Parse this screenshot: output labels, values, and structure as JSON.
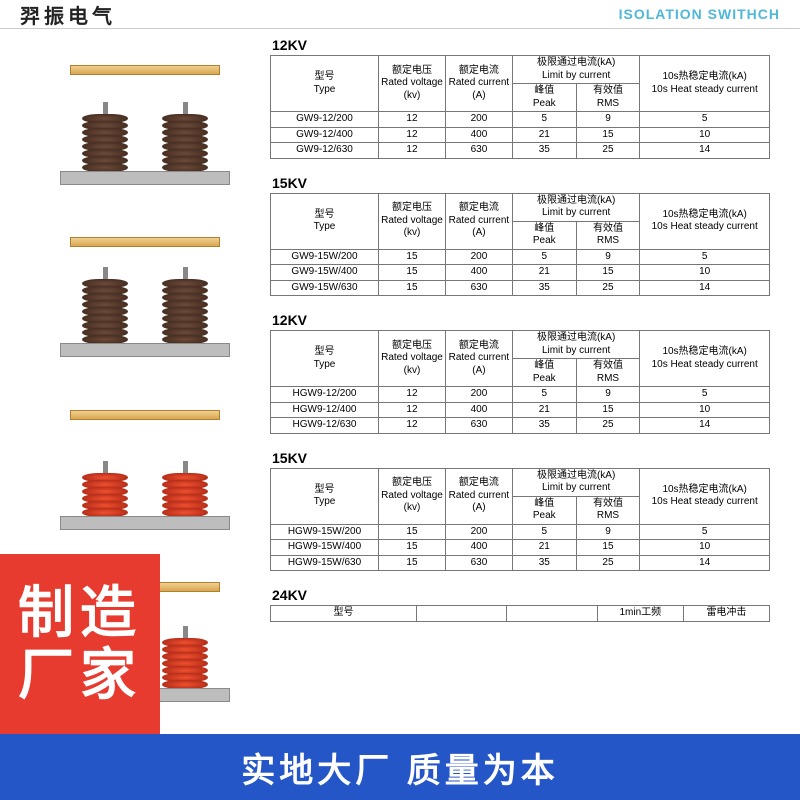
{
  "header": {
    "left_text": "羿振电气",
    "right_text": "ISOLATION SWITHCH"
  },
  "products": [
    {
      "color": "brown",
      "discs": 8
    },
    {
      "color": "brown",
      "discs": 9
    },
    {
      "color": "red",
      "discs": 6
    },
    {
      "color": "red",
      "discs": 7
    }
  ],
  "header_labels": {
    "type_cn": "型号",
    "type_en": "Type",
    "voltage_cn": "额定电压",
    "voltage_en": "Rated voltage",
    "voltage_unit": "(kv)",
    "current_cn": "额定电流",
    "current_en": "Rated current",
    "current_unit": "(A)",
    "limit_cn": "极限通过电流(kA)",
    "limit_en": "Limit by current",
    "peak_cn": "峰值",
    "peak_en": "Peak",
    "rms_cn": "有效值",
    "rms_en": "RMS",
    "heat_cn": "10s热稳定电流(kA)",
    "heat_en": "10s Heat steady current"
  },
  "sections": [
    {
      "title": "12KV",
      "rows": [
        {
          "type": "GW9-12/200",
          "kv": "12",
          "a": "200",
          "peak": "5",
          "rms": "9",
          "heat": "5"
        },
        {
          "type": "GW9-12/400",
          "kv": "12",
          "a": "400",
          "peak": "21",
          "rms": "15",
          "heat": "10"
        },
        {
          "type": "GW9-12/630",
          "kv": "12",
          "a": "630",
          "peak": "35",
          "rms": "25",
          "heat": "14"
        }
      ]
    },
    {
      "title": "15KV",
      "rows": [
        {
          "type": "GW9-15W/200",
          "kv": "15",
          "a": "200",
          "peak": "5",
          "rms": "9",
          "heat": "5"
        },
        {
          "type": "GW9-15W/400",
          "kv": "15",
          "a": "400",
          "peak": "21",
          "rms": "15",
          "heat": "10"
        },
        {
          "type": "GW9-15W/630",
          "kv": "15",
          "a": "630",
          "peak": "35",
          "rms": "25",
          "heat": "14"
        }
      ]
    },
    {
      "title": "12KV",
      "rows": [
        {
          "type": "HGW9-12/200",
          "kv": "12",
          "a": "200",
          "peak": "5",
          "rms": "9",
          "heat": "5"
        },
        {
          "type": "HGW9-12/400",
          "kv": "12",
          "a": "400",
          "peak": "21",
          "rms": "15",
          "heat": "10"
        },
        {
          "type": "HGW9-12/630",
          "kv": "12",
          "a": "630",
          "peak": "35",
          "rms": "25",
          "heat": "14"
        }
      ]
    },
    {
      "title": "15KV",
      "rows": [
        {
          "type": "HGW9-15W/200",
          "kv": "15",
          "a": "200",
          "peak": "5",
          "rms": "9",
          "heat": "5"
        },
        {
          "type": "HGW9-15W/400",
          "kv": "15",
          "a": "400",
          "peak": "21",
          "rms": "15",
          "heat": "10"
        },
        {
          "type": "HGW9-15W/630",
          "kv": "15",
          "a": "630",
          "peak": "35",
          "rms": "25",
          "heat": "14"
        }
      ]
    }
  ],
  "partial_section": {
    "title": "24KV",
    "header_extra": {
      "col4": "1min工频",
      "col5": "雷电冲击"
    }
  },
  "badge": {
    "line1": "制造",
    "line2": "厂家"
  },
  "footer": {
    "text": "实地大厂   质量为本"
  }
}
